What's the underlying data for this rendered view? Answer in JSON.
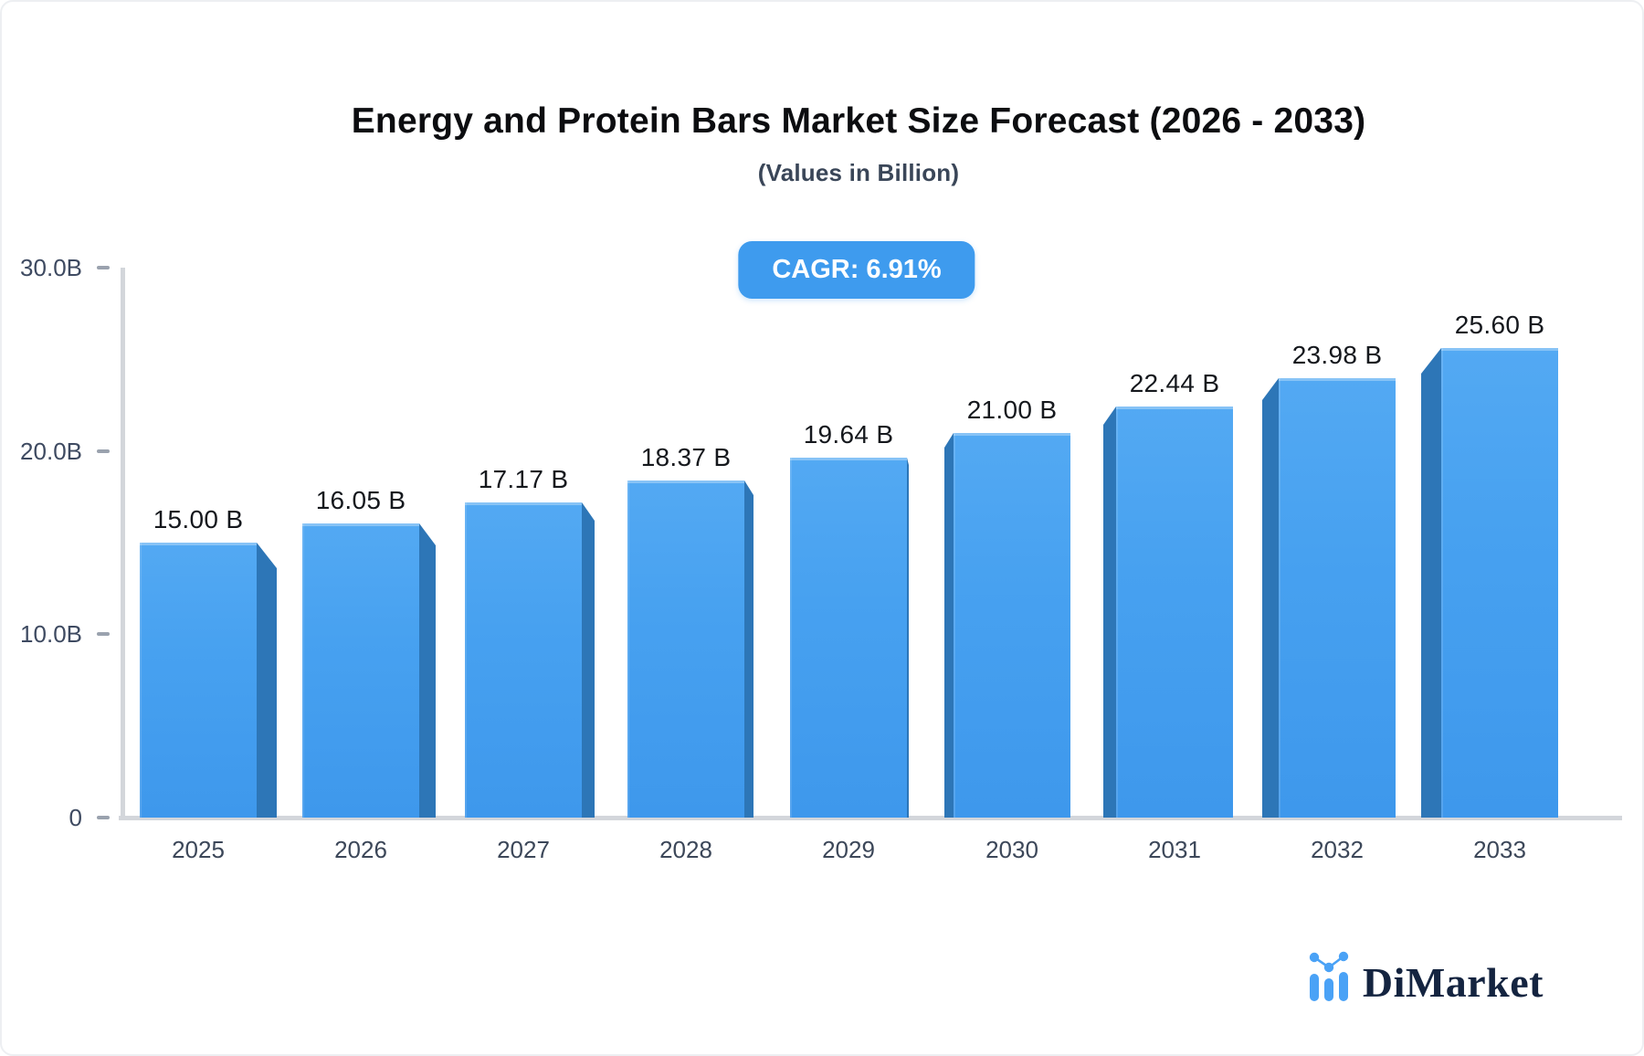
{
  "header": {
    "title": "Energy and Protein Bars Market Size Forecast (2026 - 2033)",
    "subtitle": "(Values in Billion)"
  },
  "badge": {
    "label": "CAGR: 6.91%"
  },
  "chart_data": {
    "type": "bar",
    "title": "Energy and Protein Bars Market Size Forecast (2026 - 2033)",
    "subtitle": "(Values in Billion)",
    "cagr_label": "CAGR: 6.91%",
    "categories": [
      "2025",
      "2026",
      "2027",
      "2028",
      "2029",
      "2030",
      "2031",
      "2032",
      "2033"
    ],
    "values": [
      15.0,
      16.05,
      17.17,
      18.37,
      19.64,
      21.0,
      22.44,
      23.98,
      25.6
    ],
    "value_labels": [
      "15.00 B",
      "16.05 B",
      "17.17 B",
      "18.37 B",
      "19.64 B",
      "21.00 B",
      "22.44 B",
      "23.98 B",
      "25.60 B"
    ],
    "xlabel": "",
    "ylabel": "",
    "ylim": [
      0,
      30
    ],
    "yticks": [
      {
        "value": 0,
        "label": "0"
      },
      {
        "value": 10,
        "label": "10.0B"
      },
      {
        "value": 20,
        "label": "20.0B"
      },
      {
        "value": 30,
        "label": "30.0B"
      }
    ],
    "grid": false,
    "legend": false,
    "style": "3d-perspective-bars"
  },
  "colors": {
    "accent": "#3e9bee",
    "bar_face": "#459fee",
    "bar_face_top": "#53a9f3",
    "bar_face_bottom": "#3e98ec",
    "bar_side": "#2d76b7",
    "axis_line": "#d3d6db",
    "tick_dash": "#9aa2ae",
    "tick_text": "#3e4a61",
    "x_label_text": "#3c4759",
    "value_label_text": "#15181d",
    "title_text": "#0c0d10",
    "subtitle_text": "#3a4658",
    "badge_text": "#ffffff",
    "logo_text": "#142440",
    "logo_icon": "#4aa2f6"
  },
  "logo": {
    "text": "DiMarket",
    "icon": "mini-bar-chart-icon"
  }
}
